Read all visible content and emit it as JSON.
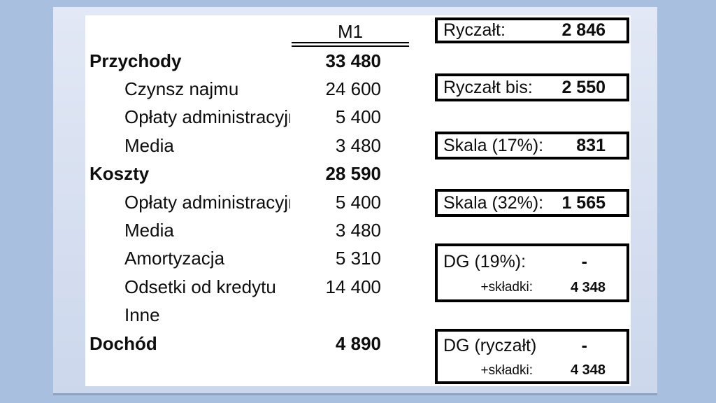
{
  "table": {
    "header": "M1",
    "rows": [
      {
        "label": "Przychody",
        "value": "33 480"
      },
      {
        "label": "Czynsz najmu",
        "value": "24 600"
      },
      {
        "label": "Opłaty administracyjn",
        "value": "5 400"
      },
      {
        "label": "Media",
        "value": "3 480"
      },
      {
        "label": "Koszty",
        "value": "28 590"
      },
      {
        "label": "Opłaty administracyjn",
        "value": "5 400"
      },
      {
        "label": "Media",
        "value": "3 480"
      },
      {
        "label": "Amortyzacja",
        "value": "5 310"
      },
      {
        "label": "Odsetki od kredytu",
        "value": "14 400"
      },
      {
        "label": "Inne",
        "value": ""
      },
      {
        "label": "Dochód",
        "value": "4 890"
      }
    ]
  },
  "boxes": [
    {
      "label": "Ryczałt:",
      "value": "2 846"
    },
    {
      "label": "Ryczałt bis:",
      "value": "2 550"
    },
    {
      "label": "Skala (17%):",
      "value": "831"
    },
    {
      "label": "Skala (32%):",
      "value": "1 565"
    },
    {
      "label": "DG (19%):",
      "value": "-",
      "sub_label": "+składki:",
      "sub_value": "4 348"
    },
    {
      "label": "DG (ryczałt)",
      "value": "-",
      "sub_label": "+składki:",
      "sub_value": "4 348"
    }
  ],
  "colors": {
    "page_background": "#a8bfe0",
    "slide_background": "#d6dff0",
    "panel_background": "#ffffff",
    "box_border": "#000000",
    "text": "#0d0d0d",
    "slide_bottom_edge": "#8ea2c2"
  }
}
